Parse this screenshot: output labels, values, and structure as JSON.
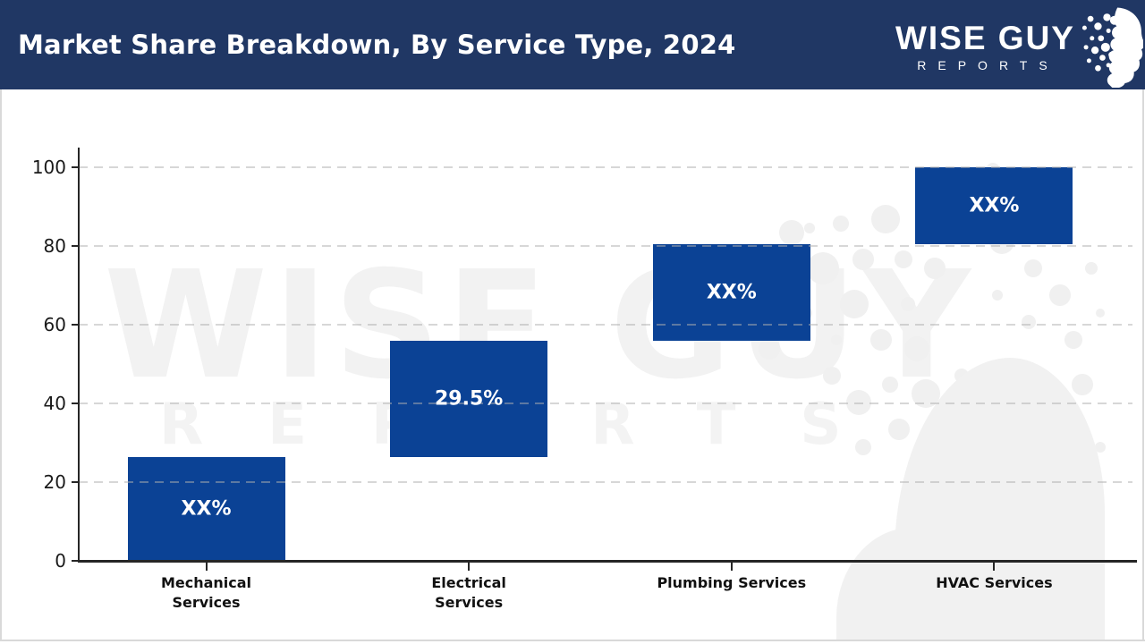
{
  "header": {
    "title": "Market Share Breakdown, By Service Type, 2024",
    "brand_line1": "WISE GUY",
    "brand_line2": "REPORTS"
  },
  "watermark": {
    "line1": "WISE GUY",
    "line2": "REPORTS"
  },
  "colors": {
    "header_bg": "#203764",
    "bar": "#0b4295",
    "axis": "#262626",
    "gridline": "#d4d4d4",
    "watermark": "#f2f2f2",
    "bar_label_text": "#ffffff",
    "tick_text": "#1a1a1a",
    "frame_border": "#d9d9d9"
  },
  "chart_data": {
    "type": "bar",
    "subtype": "waterfall",
    "title": "Market Share Breakdown, By Service Type, 2024",
    "xlabel": "",
    "ylabel": "",
    "ylim": [
      0,
      105
    ],
    "yticks": [
      0,
      20,
      40,
      60,
      80,
      100
    ],
    "grid": "horizontal dashed, drawn over bars",
    "legend": "none",
    "categories": [
      "Mechanical\nServices",
      "Electrical\nServices",
      "Plumbing Services",
      "HVAC Services"
    ],
    "values": [
      26.4,
      29.5,
      24.6,
      19.5
    ],
    "bars": [
      {
        "category": "Mechanical Services",
        "start": 0,
        "end": 26.4,
        "label": "XX%"
      },
      {
        "category": "Electrical Services",
        "start": 26.4,
        "end": 55.9,
        "label": "29.5%"
      },
      {
        "category": "Plumbing Services",
        "start": 55.9,
        "end": 80.5,
        "label": "XX%"
      },
      {
        "category": "HVAC Services",
        "start": 80.5,
        "end": 100,
        "label": "XX%"
      }
    ]
  }
}
